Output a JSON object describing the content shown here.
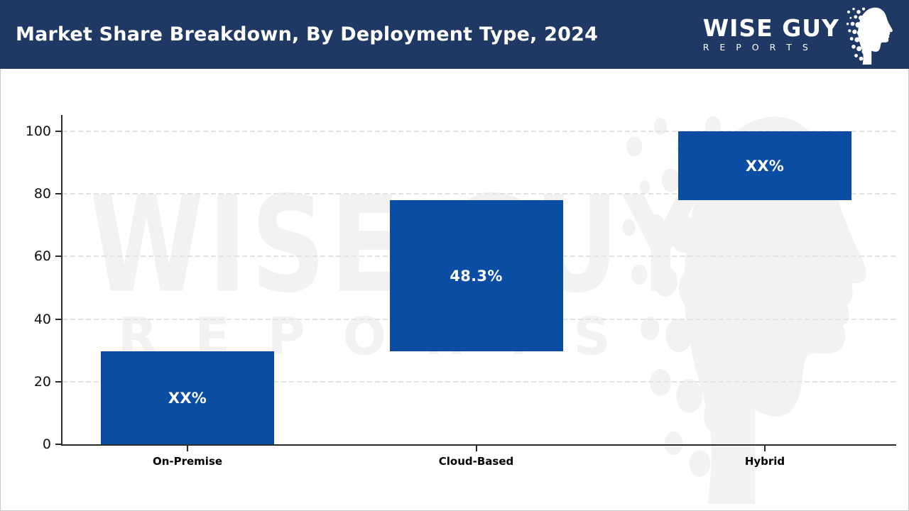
{
  "header": {
    "title": "Market Share Breakdown, By Deployment Type, 2024",
    "logo": {
      "wordmark": "WISE GUY",
      "subtext": "R E P O R T S",
      "face_icon": "dotted-face-profile-icon"
    }
  },
  "watermark": {
    "wordmark": "WISE GUY",
    "subtext": "R E P O R T S",
    "face_icon": "dotted-face-profile-icon"
  },
  "chart_data": {
    "type": "bar",
    "variant": "floating-waterfall-segments",
    "title": "Market Share Breakdown, By Deployment Type, 2024",
    "categories": [
      "On-Premise",
      "Cloud-Based",
      "Hybrid"
    ],
    "bars": [
      {
        "category": "On-Premise",
        "start": 0,
        "end": 29.6,
        "value_label": "XX%"
      },
      {
        "category": "Cloud-Based",
        "start": 29.6,
        "end": 77.9,
        "value_label": "48.3%"
      },
      {
        "category": "Hybrid",
        "start": 77.9,
        "end": 100,
        "value_label": "XX%"
      }
    ],
    "xlabel": "",
    "ylabel": "",
    "yticks": [
      0,
      20,
      40,
      60,
      80,
      100
    ],
    "ylim": [
      0,
      105
    ],
    "grid": "horizontal-dashed",
    "legend": "none"
  },
  "colors": {
    "header_bg": "#1f3864",
    "bar": "#0b4da2",
    "bar_label": "#ffffff",
    "grid": "#e3e3e3",
    "axis": "#2b2b2b",
    "tick_text": "#111111",
    "watermark": "#f2f2f4",
    "frame_border": "#c9c9cc"
  }
}
